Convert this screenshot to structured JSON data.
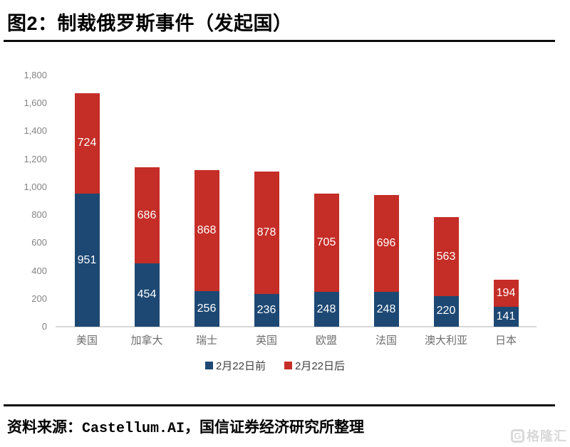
{
  "header": {
    "title": "图2：制裁俄罗斯事件（发起国）"
  },
  "footer": {
    "source_prefix": "资料来源：",
    "source_latin": "Castellum.AI",
    "source_suffix": "，国信证券经济研究所整理",
    "watermark_icon": "G",
    "watermark_text": "格隆汇"
  },
  "chart_data": {
    "type": "bar",
    "stacked": true,
    "title": "图2：制裁俄罗斯事件（发起国）",
    "categories": [
      "美国",
      "加拿大",
      "瑞士",
      "英国",
      "欧盟",
      "法国",
      "澳大利亚",
      "日本"
    ],
    "series": [
      {
        "name": "2月22日前",
        "color": "#1d4873",
        "values": [
          951,
          454,
          256,
          236,
          248,
          248,
          220,
          141
        ]
      },
      {
        "name": "2月22日后",
        "color": "#c52d27",
        "values": [
          724,
          686,
          868,
          878,
          705,
          696,
          563,
          194
        ]
      }
    ],
    "totals": [
      1675,
      1140,
      1124,
      1114,
      953,
      944,
      783,
      335
    ],
    "xlabel": "",
    "ylabel": "",
    "ylim": [
      0,
      1800
    ],
    "ytick_step": 200,
    "ytick_labels": [
      "0",
      "200",
      "400",
      "600",
      "800",
      "1,000",
      "1,200",
      "1,400",
      "1,600",
      "1,800"
    ],
    "grid": false,
    "legend_position": "bottom",
    "data_label_color": "#ffffff",
    "axis_line_color": "#d8d8d8"
  }
}
